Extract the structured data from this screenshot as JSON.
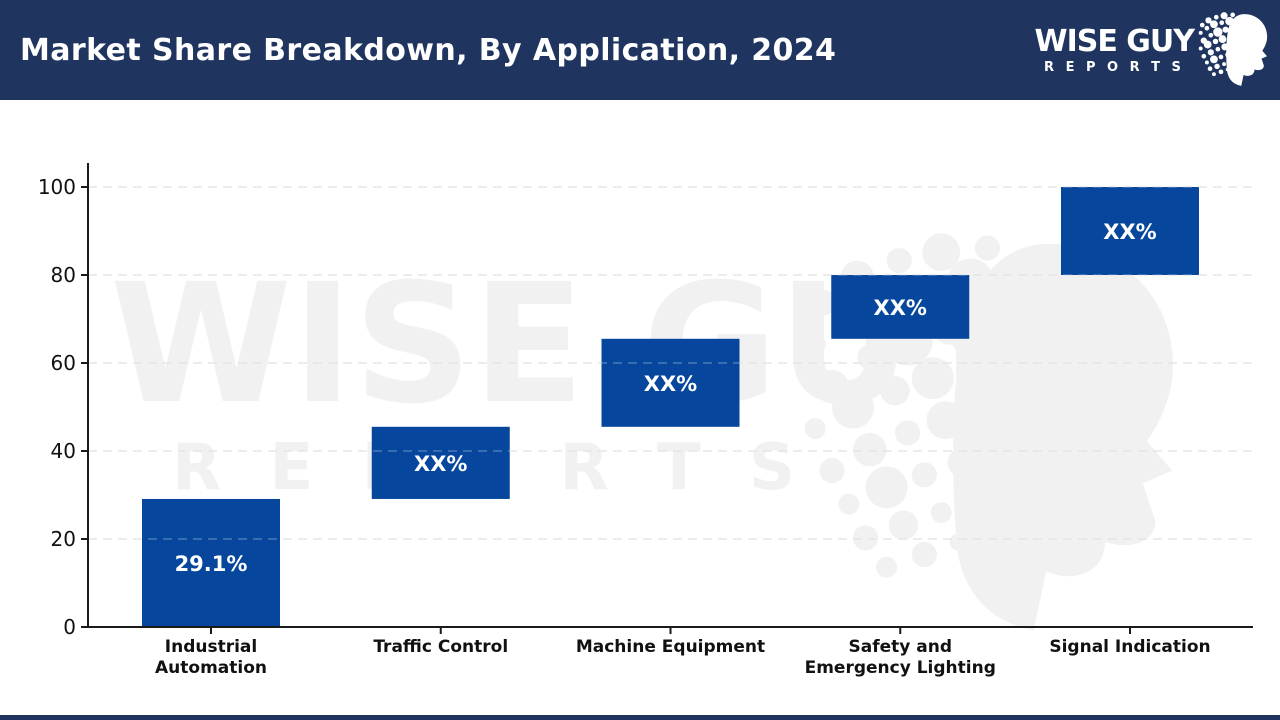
{
  "header": {
    "title": "Market Share Breakdown, By Application, 2024",
    "logo": {
      "name_line": "WISE GUY",
      "reports_line": "R E P O R T S"
    }
  },
  "watermark": {
    "line1": "WISE GUY",
    "line2": "R E P O R T S"
  },
  "chart_data": {
    "type": "bar",
    "subtype": "waterfall",
    "title": "Market Share Breakdown, By Application, 2024",
    "categories": [
      "Industrial Automation",
      "Traffic Control",
      "Machine Equipment",
      "Safety and Emergency Lighting",
      "Signal Indication"
    ],
    "bars": [
      {
        "category": "Industrial Automation",
        "label_lines": [
          "Industrial",
          "Automation"
        ],
        "start": 0,
        "end": 29.1,
        "value_label": "29.1%"
      },
      {
        "category": "Traffic Control",
        "label_lines": [
          "Traffic Control"
        ],
        "start": 29.1,
        "end": 45.5,
        "value_label": "XX%"
      },
      {
        "category": "Machine Equipment",
        "label_lines": [
          "Machine Equipment"
        ],
        "start": 45.5,
        "end": 65.5,
        "value_label": "XX%"
      },
      {
        "category": "Safety and Emergency Lighting",
        "label_lines": [
          "Safety and",
          "Emergency Lighting"
        ],
        "start": 65.5,
        "end": 80,
        "value_label": "XX%"
      },
      {
        "category": "Signal Indication",
        "label_lines": [
          "Signal Indication"
        ],
        "start": 80,
        "end": 100,
        "value_label": "XX%"
      }
    ],
    "xlabel": "",
    "ylabel": "",
    "ylim": [
      0,
      100
    ],
    "yticks": [
      0,
      20,
      40,
      60,
      80,
      100
    ],
    "grid": "horizontal-dashed",
    "legend": "none"
  },
  "theme": {
    "header_bg": "#1f3560",
    "footer_bg": "#1f3560",
    "bar_color": "#06479d",
    "value_label_color": "#ffffff",
    "grid_color": "#dedede",
    "axis_color": "#1a1a1a",
    "tick_label_color": "#111111",
    "watermark_color": "#f1f1f1",
    "title_color": "#ffffff"
  }
}
